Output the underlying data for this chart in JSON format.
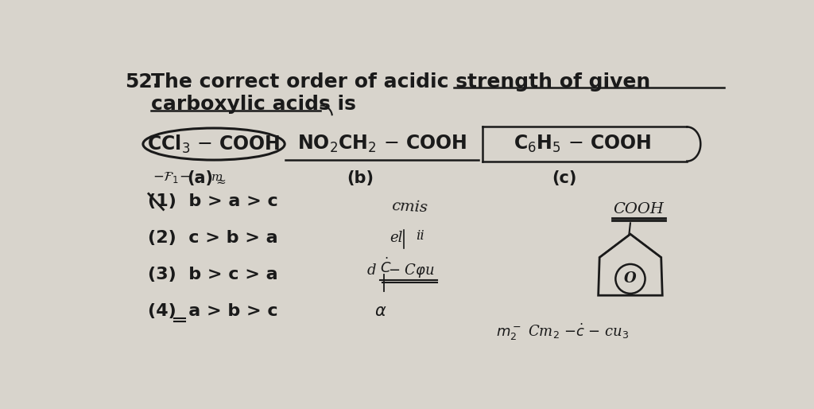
{
  "background_color": "#d8d4cc",
  "text_color": "#1a1a1a",
  "title_num": "52.",
  "title_line1": "The correct order of acidic strength of given",
  "title_line2": "carboxylic acids is",
  "compound_a": "CCl₃ – COOH",
  "compound_b": "NO₂CH₂ – COOH",
  "compound_c": "C₆H₅ – COOH",
  "label_a": "(a)",
  "label_b": "(b)",
  "label_c": "(c)",
  "options": [
    "(1)  b > a > c",
    "(2)  c > b > a",
    "(3)  b > c > a",
    "(4)  a > b > c"
  ],
  "font_size_title": 18,
  "font_size_compound": 17,
  "font_size_label": 15,
  "font_size_option": 16
}
